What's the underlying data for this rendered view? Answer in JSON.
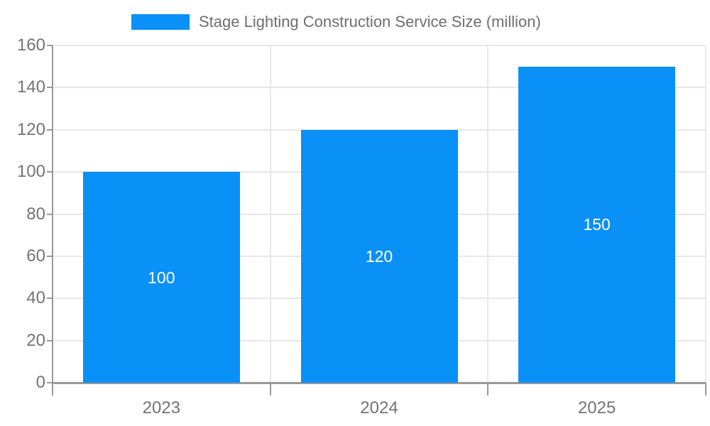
{
  "chart_data": {
    "type": "bar",
    "title": "Stage Lighting Construction Service Size (million)",
    "legend_position": "top",
    "legend_entries": [
      "Stage Lighting Construction Service Size (million)"
    ],
    "categories": [
      "2023",
      "2024",
      "2025"
    ],
    "series": [
      {
        "name": "Stage Lighting Construction Service Size (million)",
        "values": [
          100,
          120,
          150
        ]
      }
    ],
    "data_labels": [
      "100",
      "120",
      "150"
    ],
    "xlabel": "",
    "ylabel": "",
    "ylim": [
      0,
      160
    ],
    "yticks": [
      0,
      20,
      40,
      60,
      80,
      100,
      120,
      140,
      160
    ],
    "grid": true,
    "colors": {
      "bar": "#0991f7",
      "data_label": "#ffffff",
      "axis": "#999999",
      "gridline": "#e8e8e8",
      "tick_label": "#737373",
      "legend_text": "#6e6e6e"
    }
  }
}
